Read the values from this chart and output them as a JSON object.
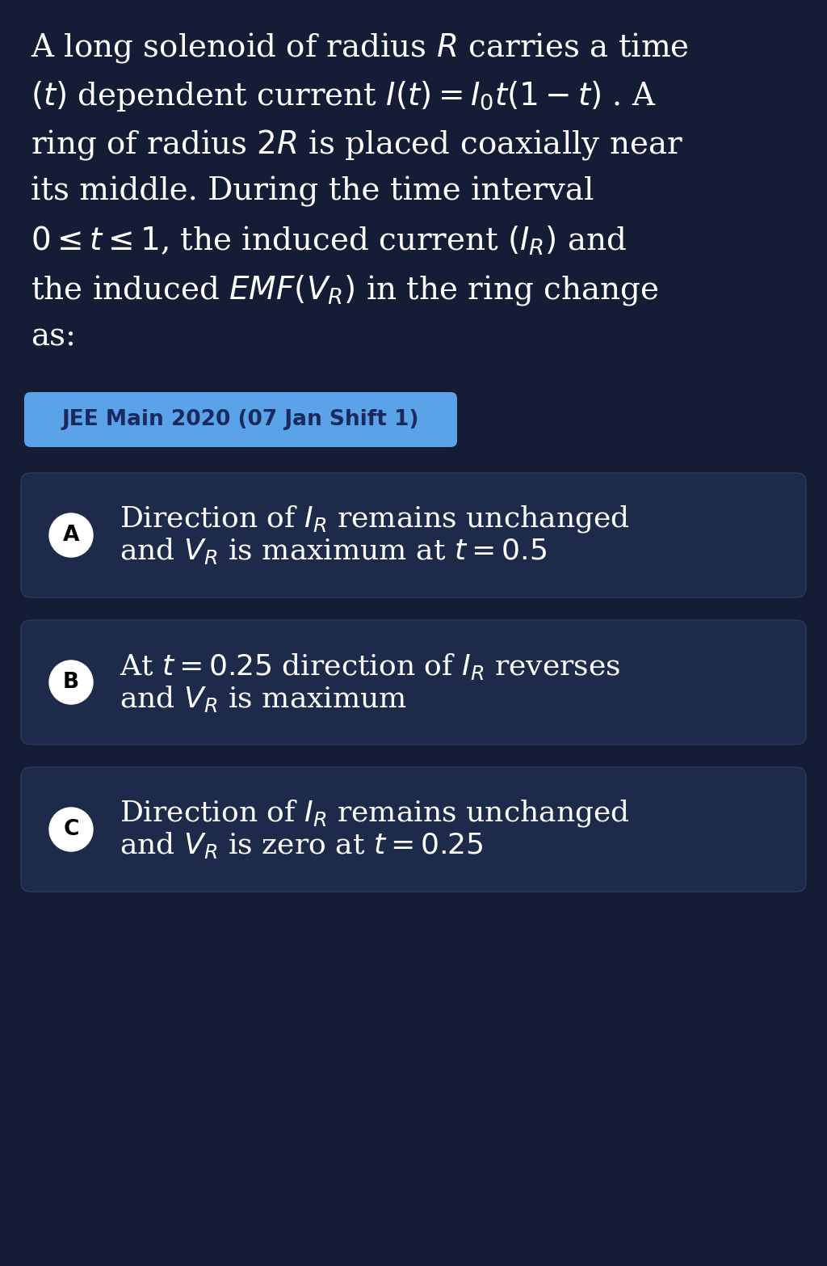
{
  "bg_color": "#151c36",
  "text_color": "#ffffff",
  "question_text_lines": [
    "A long solenoid of radius $R$ carries a time",
    "$(t)$ dependent current $I(t)= I_0t(1-t)$ . A",
    "ring of radius $2R$ is placed coaxially near",
    "its middle. During the time interval",
    "$0 \\leq t \\leq 1$, the induced current $(I_R)$ and",
    "the induced $EMF(V_R)$ in the ring change",
    "as:"
  ],
  "tag_text": "JEE Main 2020 (07 Jan Shift 1)",
  "tag_bg": "#5ba3e8",
  "tag_text_color": "#1a2a5e",
  "option_bg": "#1e2a4a",
  "option_border": "#2a3a5a",
  "options": [
    {
      "label": "A",
      "line1": "Direction of $I_R$ remains unchanged",
      "line2": "and $V_R$ is maximum at $t = 0.5$"
    },
    {
      "label": "B",
      "line1": "At $t = 0.25$ direction of $I_R$ reverses",
      "line2": "and $V_R$ is maximum"
    },
    {
      "label": "C",
      "line1": "Direction of $I_R$ remains unchanged",
      "line2": "and $V_R$ is zero at $t = 0.25$"
    }
  ],
  "question_fontsize": 28,
  "option_fontsize": 26,
  "tag_fontsize": 19,
  "label_fontsize": 19
}
